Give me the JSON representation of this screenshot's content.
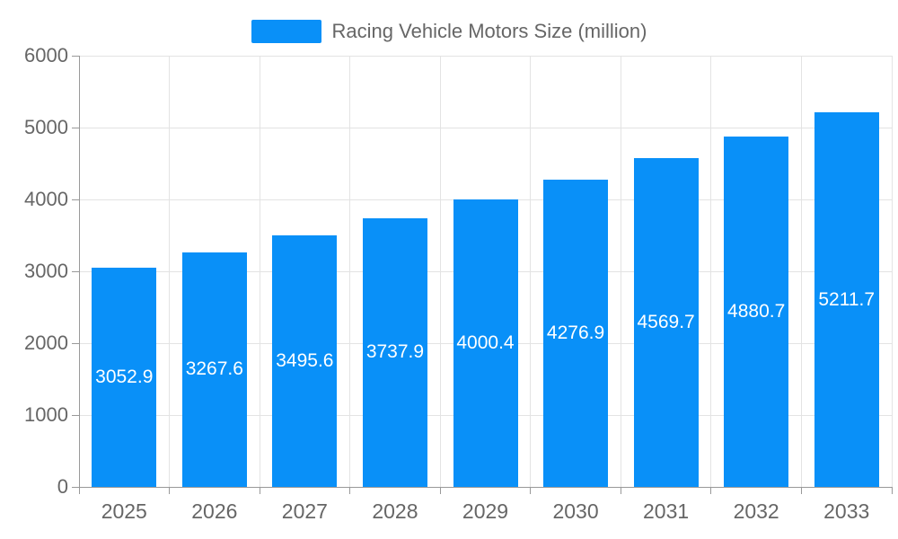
{
  "chart_data": {
    "type": "bar",
    "title": "Racing Vehicle Motors Size (million)",
    "legend": [
      "Racing Vehicle Motors Size (million)"
    ],
    "legend_position": "top-center",
    "categories": [
      "2025",
      "2026",
      "2027",
      "2028",
      "2029",
      "2030",
      "2031",
      "2032",
      "2033"
    ],
    "series": [
      {
        "name": "Racing Vehicle Motors Size (million)",
        "values": [
          3052.9,
          3267.6,
          3495.6,
          3737.9,
          4000.4,
          4276.9,
          4569.7,
          4880.7,
          5211.7
        ]
      }
    ],
    "bar_value_labels": [
      "3052.9",
      "3267.6",
      "3495.6",
      "3737.9",
      "4000.4",
      "4276.9",
      "4569.7",
      "4880.7",
      "5211.7"
    ],
    "bar_value_label_position": "inside-center",
    "xlabel": "",
    "ylabel": "",
    "ylim": [
      0,
      6000
    ],
    "y_ticks": [
      0,
      1000,
      2000,
      3000,
      4000,
      5000,
      6000
    ],
    "grid": true,
    "colors": {
      "bar": "#0990f8",
      "bar_label_text": "#ffffff",
      "gridline": "#e3e3e3",
      "axis": "#999999",
      "tick_label": "#666666",
      "legend_text": "#666666",
      "background": "#ffffff"
    }
  }
}
